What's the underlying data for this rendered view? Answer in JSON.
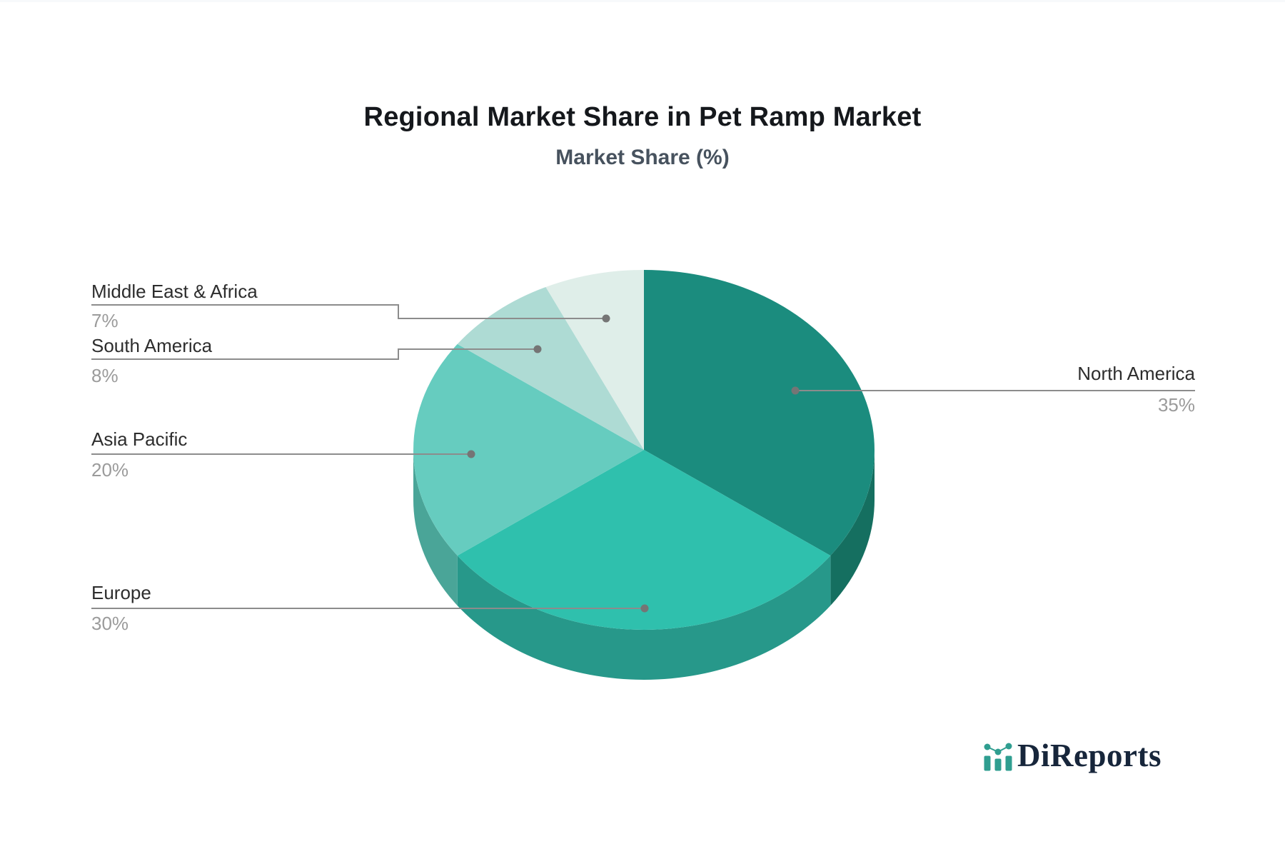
{
  "chart_data": {
    "type": "pie",
    "style": "3d",
    "title": "Regional Market Share in Pet Ramp Market",
    "subtitle": "Market Share (%)",
    "unit": "%",
    "rotation": "starts at 12 o'clock, clockwise",
    "legend": "none, labels shown as callouts with leader lines",
    "labels": [
      "North America",
      "Europe",
      "Asia Pacific",
      "South America",
      "Middle East & Africa"
    ],
    "values": [
      35,
      30,
      20,
      8,
      7
    ],
    "colors": [
      "#1b8c7e",
      "#2fc0ad",
      "#66ccbf",
      "#aedbd4",
      "#dfeee9"
    ],
    "side_colors": [
      "#156f60",
      "#27988a",
      "#4aa598",
      "#8fc4bc",
      "#c2ddd6"
    ],
    "leader_color": "#8c8c8c",
    "dot_color": "#757575"
  },
  "callouts": [
    {
      "name": "Middle East & Africa",
      "value": "7%"
    },
    {
      "name": "South America",
      "value": "8%"
    },
    {
      "name": "Asia Pacific",
      "value": "20%"
    },
    {
      "name": "Europe",
      "value": "30%"
    },
    {
      "name": "North America",
      "value": "35%"
    }
  ],
  "logo": {
    "text": "DiReports",
    "icon": "bar-chart-icon",
    "accent_color": "#2f9e90",
    "text_color": "#17263b"
  }
}
